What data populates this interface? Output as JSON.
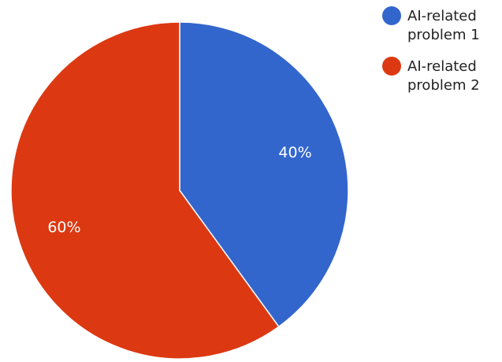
{
  "chart_data": {
    "type": "pie",
    "title": "",
    "slices": [
      {
        "label": "AI-related problem 1",
        "legend_lines": [
          "AI-related",
          "problem 1"
        ],
        "value": 40,
        "value_label": "40%",
        "color": "#3366cc"
      },
      {
        "label": "AI-related problem 2",
        "legend_lines": [
          "AI-related",
          "problem 2"
        ],
        "value": 60,
        "value_label": "60%",
        "color": "#dc3912"
      }
    ],
    "start_angle": "12 o'clock",
    "direction": "clockwise",
    "legend": {
      "placement": "top-right"
    }
  }
}
